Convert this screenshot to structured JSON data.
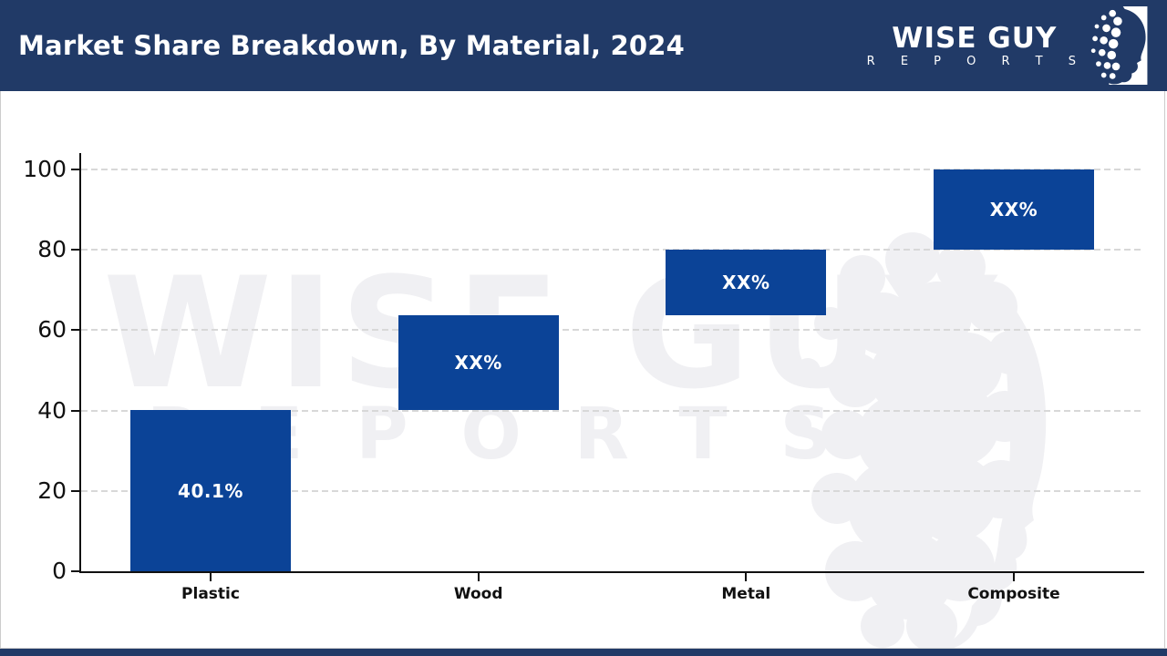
{
  "header": {
    "title": "Market Share Breakdown, By Material, 2024",
    "logo": {
      "line1": "WISE GUY",
      "line2": "R E P O R T S"
    }
  },
  "watermark": {
    "line1": "WISE GUY",
    "line2": "REPORTS"
  },
  "colors": {
    "header_bg": "#213A67",
    "bar": "#0B4397",
    "grid": "#D8D8D8",
    "watermark": "#F0F0F3",
    "axis": "#111111",
    "bar_label_text": "#FFFFFF"
  },
  "chart_data": {
    "type": "bar",
    "subtype": "waterfall",
    "title": "Market Share Breakdown, By Material, 2024",
    "categories": [
      "Plastic",
      "Wood",
      "Metal",
      "Composite"
    ],
    "bars": [
      {
        "category": "Plastic",
        "start": 0,
        "end": 40.1,
        "label": "40.1%"
      },
      {
        "category": "Wood",
        "start": 40.1,
        "end": 63.8,
        "label": "XX%"
      },
      {
        "category": "Metal",
        "start": 63.8,
        "end": 80.1,
        "label": "XX%"
      },
      {
        "category": "Composite",
        "start": 80.1,
        "end": 100,
        "label": "XX%"
      }
    ],
    "xlabel": "",
    "ylabel": "",
    "yticks": [
      0,
      20,
      40,
      60,
      80,
      100
    ],
    "ylim": [
      0,
      100
    ],
    "grid": true,
    "grid_style": "dashed",
    "legend": "none"
  }
}
